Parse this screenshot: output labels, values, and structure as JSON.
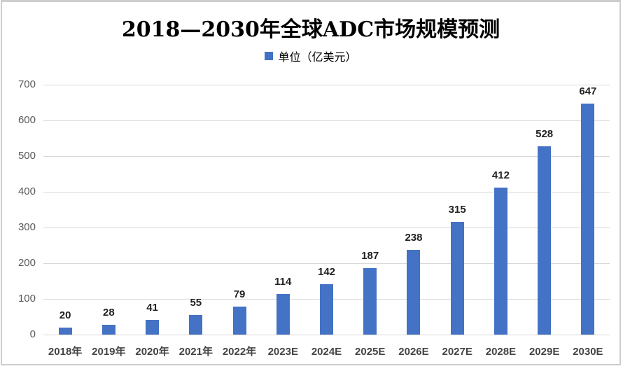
{
  "title": "2018—2030年全球ADC市场规模预测",
  "legend": {
    "label": "单位（亿美元）",
    "marker_color": "#4472C4"
  },
  "colors": {
    "bar": "#4472C4",
    "gridline": "#D9D9D9",
    "y_axis_label": "#595959",
    "x_axis_label": "#444444",
    "data_label": "#222222",
    "frame_border": "#CDCDCD",
    "background": "#FFFFFF"
  },
  "chart_data": {
    "type": "bar",
    "title": "2018—2030年全球ADC市场规模预测",
    "legend_entries": [
      "单位（亿美元）"
    ],
    "legend_position": "top",
    "categories": [
      "2018年",
      "2019年",
      "2020年",
      "2021年",
      "2022年",
      "2023E",
      "2024E",
      "2025E",
      "2026E",
      "2027E",
      "2028E",
      "2029E",
      "2030E"
    ],
    "values": [
      20,
      28,
      41,
      55,
      79,
      114,
      142,
      187,
      238,
      315,
      412,
      528,
      647
    ],
    "xlabel": "",
    "ylabel": "",
    "ylim": [
      0,
      700
    ],
    "yticks": [
      0,
      100,
      200,
      300,
      400,
      500,
      600,
      700
    ],
    "grid": true,
    "data_labels": true
  }
}
